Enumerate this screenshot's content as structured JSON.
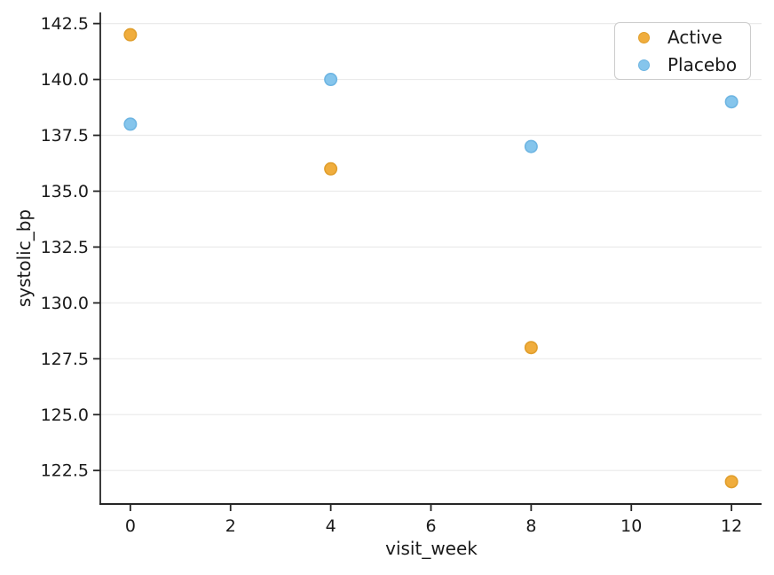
{
  "chart_data": {
    "type": "scatter",
    "title": "",
    "xlabel": "visit_week",
    "ylabel": "systolic_bp",
    "x": [
      0,
      4,
      8,
      12
    ],
    "series": [
      {
        "name": "Active",
        "color": "#F0AD3D",
        "edge_color": "#E09E2C",
        "values": [
          142,
          136,
          128,
          122
        ]
      },
      {
        "name": "Placebo",
        "color": "#85C5EC",
        "edge_color": "#6EB5E2",
        "values": [
          138,
          140,
          137,
          139
        ]
      }
    ],
    "xlim": [
      -0.6,
      12.6
    ],
    "ylim": [
      121,
      143
    ],
    "xticks": {
      "values": [
        0,
        2,
        4,
        6,
        8,
        10,
        12
      ],
      "labels": [
        "0",
        "2",
        "4",
        "6",
        "8",
        "10",
        "12"
      ]
    },
    "yticks": {
      "values": [
        122.5,
        125,
        127.5,
        130,
        132.5,
        135,
        137.5,
        140,
        142.5
      ],
      "labels": [
        "122.5",
        "125.0",
        "127.5",
        "130.0",
        "132.5",
        "135.0",
        "137.5",
        "140.0",
        "142.5"
      ]
    },
    "grid": "horizontal",
    "legend": {
      "position": "upper right",
      "items": [
        "Active",
        "Placebo"
      ]
    },
    "colors": {
      "grid": "#EBEBEB",
      "spine": "#262626",
      "text": "#1A1A1A",
      "legend_border": "#CCCCCC",
      "background": "#FFFFFF"
    }
  }
}
